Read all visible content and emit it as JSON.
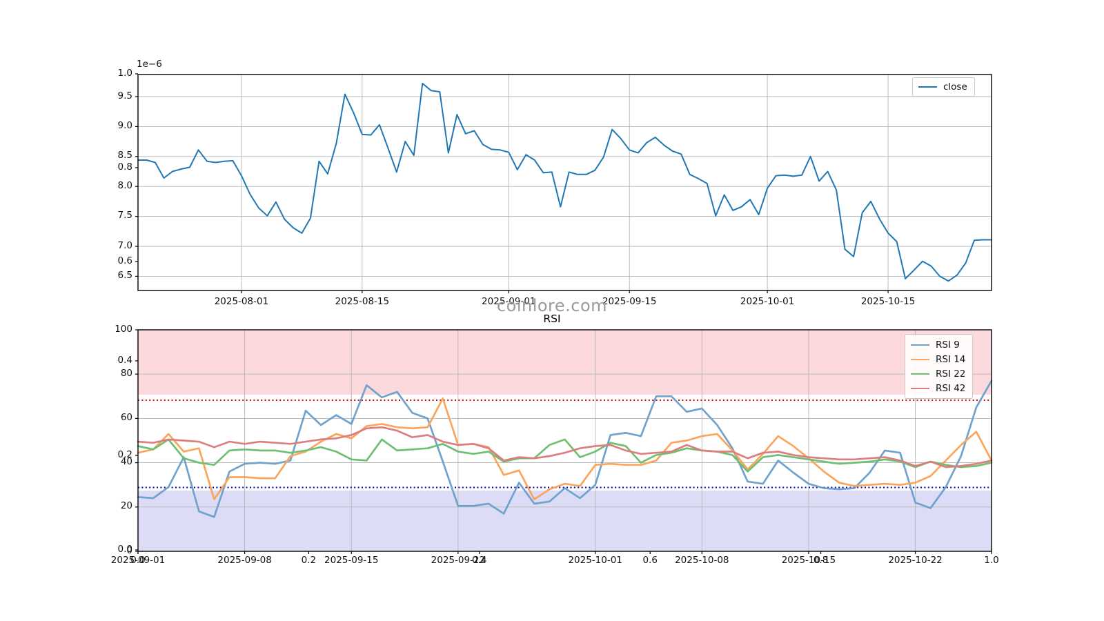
{
  "watermark": {
    "text": "coinlore.com"
  },
  "price_chart": {
    "offset_label": "1e−6",
    "yticks": [
      "9.5",
      "9.0",
      "8.5",
      "8.0",
      "7.5",
      "7.0",
      "6.5"
    ],
    "yticks_secondary": [
      "1.0",
      "0.8",
      "0.6"
    ],
    "xticks": [
      "2025-08-01",
      "2025-08-15",
      "2025-09-01",
      "2025-09-15",
      "2025-10-01",
      "2025-10-15"
    ]
  },
  "rsi_chart": {
    "title": "RSI",
    "yticks": [
      "100",
      "80",
      "60",
      "40",
      "20",
      "0"
    ],
    "yticks_secondary": [
      "0.4",
      "0.2",
      "0.0"
    ],
    "xticks": [
      "2025-09-01",
      "2025-09-08",
      "2025-09-15",
      "2025-09-22",
      "2025-10-01",
      "2025-10-08",
      "2025-10-15",
      "2025-10-22"
    ],
    "xticks_secondary": [
      "0.0",
      "0.2",
      "0.4",
      "0.6",
      "0.8",
      "1.0"
    ],
    "levels": {
      "overbought": 70,
      "oversold": 30
    },
    "colors": {
      "overbought_band": "#fbd9dc",
      "oversold_band": "#dddcf6",
      "overbought_line": "#e50000",
      "oversold_line": "#0000cc"
    }
  },
  "chart_data": [
    {
      "type": "line",
      "title": "",
      "y_unit_offset": "1e−6",
      "ylim": [
        6.3,
        10.0
      ],
      "grid": true,
      "legend_position": "upper right",
      "dates": [
        "2025-07-20",
        "2025-07-21",
        "2025-07-22",
        "2025-07-23",
        "2025-07-24",
        "2025-07-25",
        "2025-07-26",
        "2025-07-27",
        "2025-07-28",
        "2025-07-29",
        "2025-07-30",
        "2025-07-31",
        "2025-08-01",
        "2025-08-02",
        "2025-08-03",
        "2025-08-04",
        "2025-08-05",
        "2025-08-06",
        "2025-08-07",
        "2025-08-08",
        "2025-08-09",
        "2025-08-10",
        "2025-08-11",
        "2025-08-12",
        "2025-08-13",
        "2025-08-14",
        "2025-08-15",
        "2025-08-16",
        "2025-08-17",
        "2025-08-18",
        "2025-08-19",
        "2025-08-20",
        "2025-08-21",
        "2025-08-22",
        "2025-08-23",
        "2025-08-24",
        "2025-08-25",
        "2025-08-26",
        "2025-08-27",
        "2025-08-28",
        "2025-08-29",
        "2025-08-30",
        "2025-08-31",
        "2025-09-01",
        "2025-09-02",
        "2025-09-03",
        "2025-09-04",
        "2025-09-05",
        "2025-09-06",
        "2025-09-07",
        "2025-09-08",
        "2025-09-09",
        "2025-09-10",
        "2025-09-11",
        "2025-09-12",
        "2025-09-13",
        "2025-09-14",
        "2025-09-15",
        "2025-09-16",
        "2025-09-17",
        "2025-09-18",
        "2025-09-19",
        "2025-09-20",
        "2025-09-21",
        "2025-09-22",
        "2025-09-23",
        "2025-09-24",
        "2025-09-25",
        "2025-09-26",
        "2025-09-27",
        "2025-09-28",
        "2025-09-29",
        "2025-09-30",
        "2025-10-01",
        "2025-10-02",
        "2025-10-03",
        "2025-10-04",
        "2025-10-05",
        "2025-10-06",
        "2025-10-07",
        "2025-10-08",
        "2025-10-09",
        "2025-10-10",
        "2025-10-11",
        "2025-10-12",
        "2025-10-13",
        "2025-10-14",
        "2025-10-15",
        "2025-10-16",
        "2025-10-17",
        "2025-10-18",
        "2025-10-19",
        "2025-10-20",
        "2025-10-21",
        "2025-10-22",
        "2025-10-23",
        "2025-10-24",
        "2025-10-25",
        "2025-10-26",
        "2025-10-27"
      ],
      "series": [
        {
          "name": "close",
          "color": "#1f77b4",
          "values": [
            8.44,
            8.44,
            8.4,
            8.14,
            8.25,
            8.29,
            8.32,
            8.61,
            8.42,
            8.4,
            8.42,
            8.43,
            8.18,
            7.87,
            7.64,
            7.51,
            7.74,
            7.45,
            7.31,
            7.22,
            7.47,
            8.42,
            8.21,
            8.72,
            9.54,
            9.23,
            8.87,
            8.86,
            9.03,
            8.64,
            8.24,
            8.75,
            8.52,
            9.72,
            9.6,
            9.58,
            8.56,
            9.2,
            8.88,
            8.93,
            8.7,
            8.62,
            8.61,
            8.57,
            8.28,
            8.53,
            8.44,
            8.23,
            8.24,
            7.66,
            8.24,
            8.2,
            8.2,
            8.27,
            8.49,
            8.95,
            8.8,
            8.61,
            8.56,
            8.73,
            8.82,
            8.69,
            8.59,
            8.54,
            8.2,
            8.13,
            8.05,
            7.51,
            7.86,
            7.6,
            7.66,
            7.78,
            7.53,
            7.97,
            8.18,
            8.19,
            8.17,
            8.19,
            8.5,
            8.09,
            8.25,
            7.94,
            6.95,
            6.83,
            7.56,
            7.75,
            7.46,
            7.22,
            7.08,
            6.46,
            6.6,
            6.75,
            6.67,
            6.5,
            6.42,
            6.52,
            6.72,
            7.1,
            7.11,
            7.11
          ]
        }
      ]
    },
    {
      "type": "line",
      "title": "RSI",
      "ylim": [
        0,
        100
      ],
      "grid": true,
      "legend_position": "upper right",
      "hlines": [
        {
          "value": 70,
          "style": "dotted",
          "color": "#e50000"
        },
        {
          "value": 30,
          "style": "dotted",
          "color": "#0000cc"
        }
      ],
      "bands": [
        {
          "range": [
            70,
            100
          ],
          "color": "#fbd9dc"
        },
        {
          "range": [
            0,
            30
          ],
          "color": "#dddcf6"
        }
      ],
      "dates": [
        "2025-09-01",
        "2025-09-02",
        "2025-09-03",
        "2025-09-04",
        "2025-09-05",
        "2025-09-06",
        "2025-09-07",
        "2025-09-08",
        "2025-09-09",
        "2025-09-10",
        "2025-09-11",
        "2025-09-12",
        "2025-09-13",
        "2025-09-14",
        "2025-09-15",
        "2025-09-16",
        "2025-09-17",
        "2025-09-18",
        "2025-09-19",
        "2025-09-20",
        "2025-09-21",
        "2025-09-22",
        "2025-09-23",
        "2025-09-24",
        "2025-09-25",
        "2025-09-26",
        "2025-09-27",
        "2025-09-28",
        "2025-09-29",
        "2025-09-30",
        "2025-10-01",
        "2025-10-02",
        "2025-10-03",
        "2025-10-04",
        "2025-10-05",
        "2025-10-06",
        "2025-10-07",
        "2025-10-08",
        "2025-10-09",
        "2025-10-10",
        "2025-10-11",
        "2025-10-12",
        "2025-10-13",
        "2025-10-14",
        "2025-10-15",
        "2025-10-16",
        "2025-10-17",
        "2025-10-18",
        "2025-10-19",
        "2025-10-20",
        "2025-10-21",
        "2025-10-22",
        "2025-10-23",
        "2025-10-24",
        "2025-10-25",
        "2025-10-26",
        "2025-10-27"
      ],
      "series": [
        {
          "name": "RSI 9",
          "color": "#6fa3cd",
          "values": [
            24.5,
            24,
            29,
            42.5,
            18,
            15.5,
            36,
            39.5,
            40,
            39.5,
            41,
            63.5,
            57,
            61.5,
            57.5,
            75,
            69.5,
            72,
            62.5,
            60,
            40.5,
            20.5,
            20.5,
            21.5,
            17,
            31,
            21.5,
            22.5,
            28.5,
            24,
            30,
            52.5,
            53.5,
            52,
            70,
            70,
            63,
            64.5,
            57,
            46.5,
            31.5,
            30.5,
            41,
            35.5,
            30.5,
            28.5,
            28,
            28.5,
            35.5,
            45.5,
            44.5,
            22,
            19.5,
            29,
            43,
            65,
            77
          ]
        },
        {
          "name": "RSI 14",
          "color": "#fba55c",
          "values": [
            44.5,
            46,
            53,
            45,
            46.5,
            23.5,
            33.5,
            33.5,
            33,
            33,
            43,
            45,
            49.5,
            53,
            51,
            56.5,
            57.5,
            56,
            55.5,
            56,
            69,
            48,
            48.5,
            47,
            34.5,
            36.5,
            23.5,
            28,
            30.5,
            29.5,
            39,
            39.5,
            39,
            39,
            41,
            49,
            50,
            52,
            53,
            45.5,
            37,
            44,
            52,
            47.5,
            42,
            36,
            31,
            29.5,
            30,
            30.5,
            30,
            31,
            34,
            41,
            48,
            54,
            41
          ]
        },
        {
          "name": "RSI 22",
          "color": "#6fbf73",
          "values": [
            47.5,
            46,
            50.5,
            42,
            40,
            39,
            45.5,
            46,
            45.5,
            45.5,
            44.5,
            45.5,
            47,
            45,
            41.5,
            41,
            50.5,
            45.5,
            46,
            46.5,
            48.5,
            45,
            44,
            45,
            40.5,
            42,
            42,
            48,
            50.5,
            42.5,
            45,
            49,
            47.5,
            40,
            43.5,
            44.5,
            46.5,
            45.5,
            45,
            43.5,
            36,
            42.5,
            43.5,
            42.5,
            41.5,
            40.5,
            39.5,
            40,
            40.5,
            41.5,
            40.5,
            38,
            40.5,
            39,
            38,
            38.5,
            40
          ]
        },
        {
          "name": "RSI 42",
          "color": "#dd7e7e",
          "values": [
            49.5,
            49,
            50.5,
            50,
            49.5,
            47,
            49.5,
            48.5,
            49.5,
            49,
            48.5,
            49.5,
            50.5,
            51,
            52.5,
            55.5,
            56,
            54.5,
            51.5,
            52.5,
            49.5,
            48,
            48.5,
            46.5,
            41,
            42.5,
            42,
            43,
            44.5,
            46.5,
            47.5,
            48,
            45.5,
            44,
            44.5,
            45,
            48,
            45.5,
            45,
            45,
            42,
            44.5,
            45,
            43.5,
            42.5,
            42,
            41.5,
            41.5,
            42,
            42.5,
            41,
            38.5,
            40.5,
            38,
            38.5,
            39.5,
            41
          ]
        }
      ]
    }
  ]
}
